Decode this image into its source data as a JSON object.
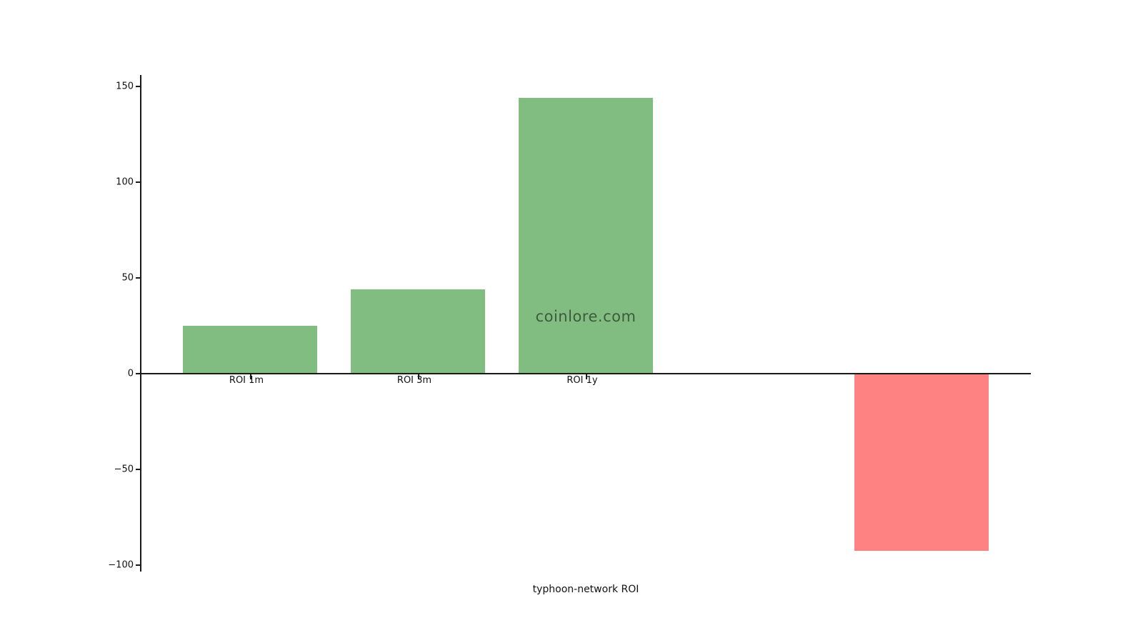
{
  "chart_data": {
    "type": "bar",
    "title": "typhoon-network ROI",
    "watermark": "coinlore.com",
    "categories": [
      "ROI 1m",
      "ROI 3m",
      "ROI 1y",
      "",
      ""
    ],
    "values": [
      25,
      44,
      144,
      null,
      -92
    ],
    "yticks": [
      150,
      100,
      50,
      0,
      -50,
      -100
    ],
    "ylim": [
      -105,
      156
    ],
    "xlabel": "",
    "ylabel": "",
    "grid": false,
    "legend": "none",
    "colors": {
      "positive_bar": "#81bd81",
      "negative_bar": "#ff8282",
      "axis": "#1a1a1a",
      "text": "#111111"
    }
  }
}
